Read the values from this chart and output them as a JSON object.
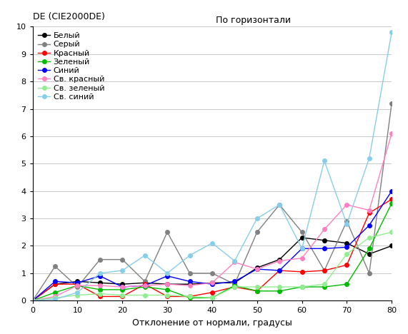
{
  "title_left": "DE (CIE2000DE)",
  "title_right": "По горизонтали",
  "xlabel": "Отклонение от нормали, градусы",
  "xlim": [
    0,
    80
  ],
  "ylim": [
    0,
    10
  ],
  "xticks": [
    0,
    10,
    20,
    30,
    40,
    50,
    60,
    70,
    80
  ],
  "yticks": [
    0,
    1,
    2,
    3,
    4,
    5,
    6,
    7,
    8,
    9,
    10
  ],
  "x": [
    0,
    5,
    10,
    15,
    20,
    25,
    30,
    35,
    40,
    45,
    50,
    55,
    60,
    65,
    70,
    75,
    80
  ],
  "series": [
    {
      "name": "Белый",
      "color": "#000000",
      "marker": "o",
      "linestyle": "-",
      "values": [
        0.0,
        0.6,
        0.7,
        0.65,
        0.6,
        0.65,
        0.6,
        0.6,
        0.65,
        0.65,
        1.2,
        1.5,
        2.3,
        2.2,
        2.1,
        1.7,
        2.0
      ]
    },
    {
      "name": "Серый",
      "color": "#808080",
      "marker": "o",
      "linestyle": "-",
      "values": [
        0.0,
        1.25,
        0.5,
        1.5,
        1.5,
        0.7,
        2.5,
        1.0,
        1.0,
        0.6,
        2.5,
        3.5,
        2.5,
        1.1,
        2.9,
        1.0,
        7.2
      ]
    },
    {
      "name": "Красный",
      "color": "#ff0000",
      "marker": "o",
      "linestyle": "-",
      "values": [
        0.0,
        0.6,
        0.6,
        0.15,
        0.15,
        0.6,
        0.15,
        0.15,
        0.3,
        0.5,
        0.35,
        1.1,
        1.05,
        1.1,
        1.3,
        3.2,
        3.7
      ]
    },
    {
      "name": "Зеленый",
      "color": "#00bb00",
      "marker": "o",
      "linestyle": "-",
      "values": [
        0.0,
        0.3,
        0.55,
        0.4,
        0.4,
        0.5,
        0.4,
        0.1,
        0.1,
        0.55,
        0.35,
        0.35,
        0.5,
        0.5,
        0.6,
        1.9,
        3.55
      ]
    },
    {
      "name": "Синий",
      "color": "#0000ff",
      "marker": "o",
      "linestyle": "-",
      "values": [
        0.0,
        0.7,
        0.65,
        0.9,
        0.5,
        0.55,
        0.9,
        0.7,
        0.6,
        0.7,
        1.15,
        1.1,
        1.9,
        1.9,
        1.95,
        2.75,
        4.0
      ]
    },
    {
      "name": "Св. красный",
      "color": "#ff80c0",
      "marker": "o",
      "linestyle": "-",
      "values": [
        0.0,
        0.15,
        0.55,
        0.55,
        0.5,
        0.55,
        0.6,
        0.55,
        0.65,
        1.4,
        1.15,
        1.45,
        1.55,
        2.6,
        3.5,
        3.3,
        6.1
      ]
    },
    {
      "name": "Св. зеленый",
      "color": "#90ee90",
      "marker": "o",
      "linestyle": "-",
      "values": [
        0.0,
        0.1,
        0.2,
        0.25,
        0.2,
        0.2,
        0.2,
        0.15,
        0.1,
        0.5,
        0.5,
        0.5,
        0.5,
        0.6,
        1.7,
        2.3,
        2.5
      ]
    },
    {
      "name": "Св. синий",
      "color": "#87ceeb",
      "marker": "o",
      "linestyle": "-",
      "values": [
        0.0,
        0.05,
        0.3,
        1.0,
        1.1,
        1.65,
        1.0,
        1.65,
        2.1,
        1.45,
        3.0,
        3.5,
        1.9,
        5.1,
        2.8,
        5.2,
        9.8
      ]
    }
  ]
}
